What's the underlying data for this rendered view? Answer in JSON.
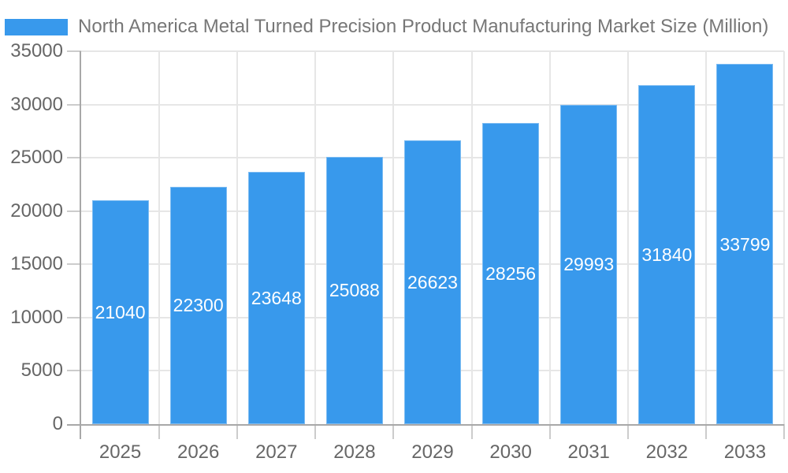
{
  "chart_data": {
    "type": "bar",
    "title": "North America Metal Turned Precision Product Manufacturing Market Size (Million)",
    "categories": [
      "2025",
      "2026",
      "2027",
      "2028",
      "2029",
      "2030",
      "2031",
      "2032",
      "2033"
    ],
    "series": [
      {
        "name": "North America Metal Turned Precision Product Manufacturing Market Size (Million)",
        "values": [
          21040,
          22300,
          23648,
          25088,
          26623,
          28256,
          29993,
          31840,
          33799
        ],
        "color": "#3899ec"
      }
    ],
    "xlabel": "",
    "ylabel": "",
    "ylim": [
      0,
      35000
    ],
    "y_ticks": [
      0,
      5000,
      10000,
      15000,
      20000,
      25000,
      30000,
      35000
    ],
    "grid": true,
    "legend_position": "top-left",
    "value_labels_position": "inside-center",
    "colors": {
      "bar": "#3899ec",
      "value_label": "#ffffff",
      "axis_text": "#666666",
      "legend_text": "#777777",
      "grid_line": "#e6e6e6",
      "axis_line": "#a8a8a8",
      "tick": "#cccccc",
      "background": "#ffffff"
    }
  }
}
